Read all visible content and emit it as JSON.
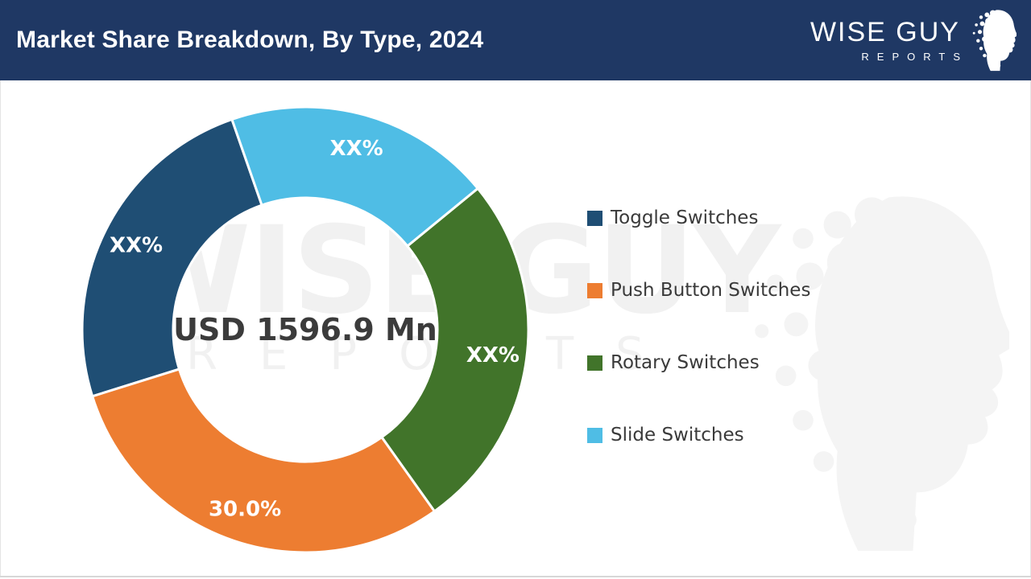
{
  "header": {
    "title": "Market Share Breakdown, By Type, 2024",
    "background_color": "#1F3864",
    "logo": {
      "name": "WISE GUY",
      "subtext": "REPORTS"
    }
  },
  "watermark": {
    "big_text": "WISE GUY",
    "sub_text": "REPORTS"
  },
  "chart_data": {
    "type": "pie",
    "subtype": "donut",
    "title": "Market Share Breakdown, By Type, 2024",
    "center_label": "USD 1596.9 Mn",
    "direction": "clockwise",
    "start_angle_deg": -19.2,
    "legend_position": "right",
    "slices": [
      {
        "name": "Slide Switches",
        "value_pct": 19.4,
        "display_label": "XX%",
        "color": "#4FBDE5"
      },
      {
        "name": "Rotary Switches",
        "value_pct": 26.1,
        "display_label": "XX%",
        "color": "#41742A"
      },
      {
        "name": "Push Button Switches",
        "value_pct": 30.0,
        "display_label": "30.0%",
        "color": "#ED7D31"
      },
      {
        "name": "Toggle Switches",
        "value_pct": 24.5,
        "display_label": "XX%",
        "color": "#1F4E74"
      }
    ]
  },
  "legend": {
    "items": [
      {
        "label": "Toggle Switches",
        "color": "#1F4E74"
      },
      {
        "label": "Push Button Switches",
        "color": "#ED7D31"
      },
      {
        "label": "Rotary Switches",
        "color": "#41742A"
      },
      {
        "label": "Slide Switches",
        "color": "#4FBDE5"
      }
    ]
  }
}
